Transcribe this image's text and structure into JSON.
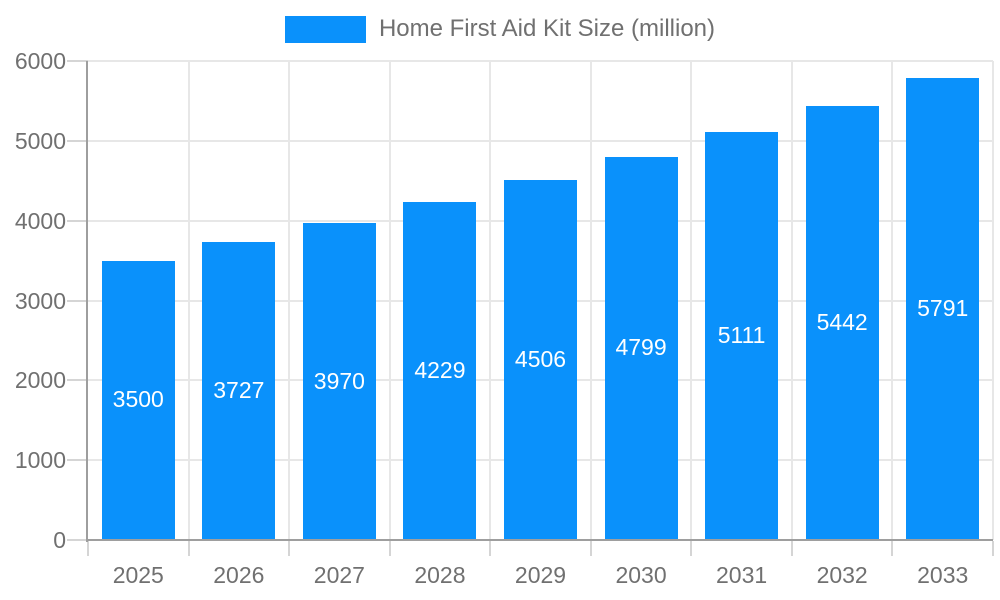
{
  "chart_data": {
    "type": "bar",
    "title": "Home First Aid Kit Size (million)",
    "categories": [
      "2025",
      "2026",
      "2027",
      "2028",
      "2029",
      "2030",
      "2031",
      "2032",
      "2033"
    ],
    "values": [
      3500,
      3727,
      3970,
      4229,
      4506,
      4799,
      5111,
      5442,
      5791
    ],
    "xlabel": "",
    "ylabel": "",
    "ylim": [
      0,
      6000
    ],
    "ytick_step": 1000,
    "yticks": [
      0,
      1000,
      2000,
      3000,
      4000,
      5000,
      6000
    ],
    "grid": true,
    "legend_position": "top-center",
    "value_label_position": "inside-center"
  },
  "colors": {
    "bar": "#0a91fb",
    "grid": "#e7e7e7",
    "tick": "#d5d5d5",
    "axis": "#9e9e9e",
    "text": "#707070",
    "value_text": "#ffffff",
    "background": "#ffffff"
  }
}
